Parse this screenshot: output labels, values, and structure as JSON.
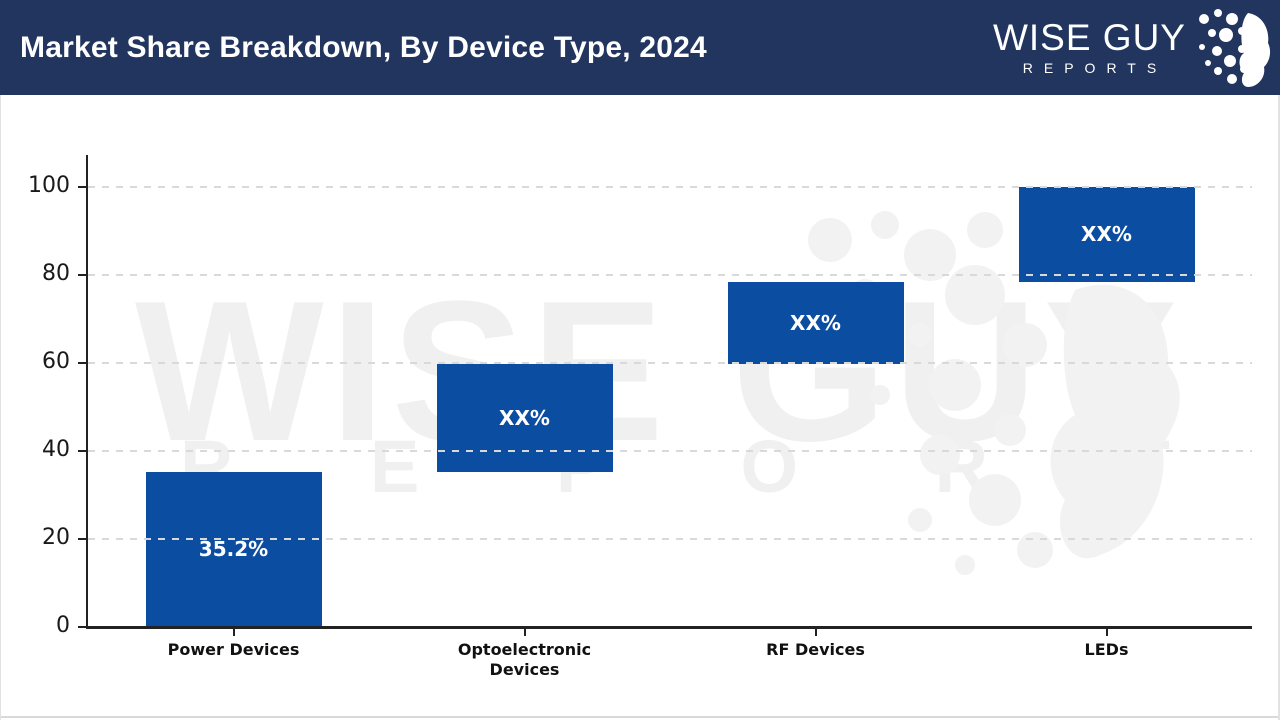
{
  "header": {
    "title": "Market Share Breakdown, By Device Type, 2024",
    "logo": {
      "name": "WISE GUY",
      "subname": "REPORTS"
    }
  },
  "watermark": {
    "line1": "WISE GUY",
    "line2": "R E P O R T S"
  },
  "colors": {
    "header_bg": "#21355f",
    "bar": "#0b4da1",
    "bar_label": "#ffffff",
    "axis": "#222222",
    "grid": "#d9d9d9",
    "tick_label": "#191919",
    "watermark": "#f0f0f0"
  },
  "chart_data": {
    "type": "bar",
    "subtype": "waterfall",
    "title": "Market Share Breakdown, By Device Type, 2024",
    "categories": [
      "Power Devices",
      "Optoelectronic Devices",
      "RF Devices",
      "LEDs"
    ],
    "segments": [
      {
        "category": "Power Devices",
        "start": 0,
        "end": 35.2,
        "label": "35.2%"
      },
      {
        "category": "Optoelectronic Devices",
        "start": 35.2,
        "end": 59.7,
        "label": "XX%"
      },
      {
        "category": "RF Devices",
        "start": 59.7,
        "end": 78.4,
        "label": "XX%"
      },
      {
        "category": "LEDs",
        "start": 78.4,
        "end": 100,
        "label": "XX%"
      }
    ],
    "ylim": [
      0,
      100
    ],
    "yticks": [
      0,
      20,
      40,
      60,
      80,
      100
    ],
    "xlabel": "",
    "ylabel": "",
    "grid": "horizontal-dashed",
    "legend": "none",
    "bar_color": "#0b4da1"
  }
}
